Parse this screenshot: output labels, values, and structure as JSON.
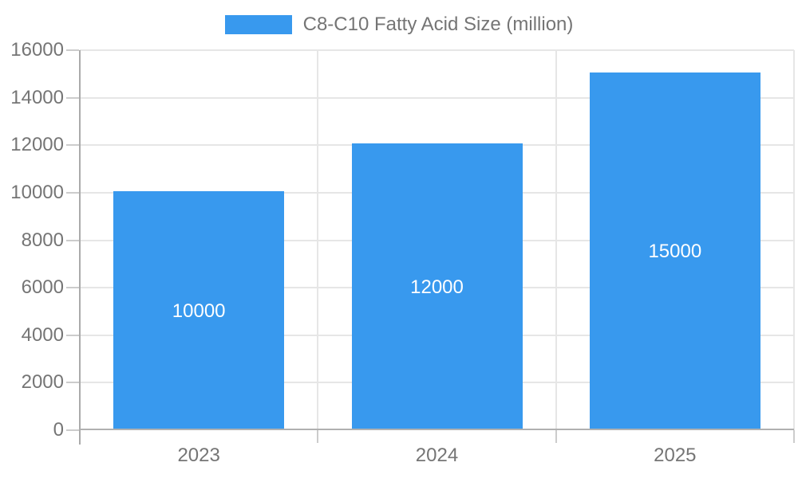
{
  "chart_data": {
    "type": "bar",
    "title": "",
    "legend": {
      "label": "C8-C10 Fatty Acid Size (million)",
      "position": "top"
    },
    "categories": [
      "2023",
      "2024",
      "2025"
    ],
    "series": [
      {
        "name": "C8-C10 Fatty Acid Size (million)",
        "values": [
          10000,
          12000,
          15000
        ]
      }
    ],
    "bar_labels": [
      "10000",
      "12000",
      "15000"
    ],
    "ylim": [
      0,
      16000
    ],
    "ytick_step": 2000,
    "ytick_labels": [
      "0",
      "2000",
      "4000",
      "6000",
      "8000",
      "10000",
      "12000",
      "14000",
      "16000"
    ],
    "grid": true,
    "colors": {
      "bar": "#3899ee",
      "axis_text": "#757575",
      "bar_label_text": "#ffffff",
      "gridline": "#e6e6e6",
      "axis_line": "#ababab",
      "background": "#ffffff"
    }
  }
}
